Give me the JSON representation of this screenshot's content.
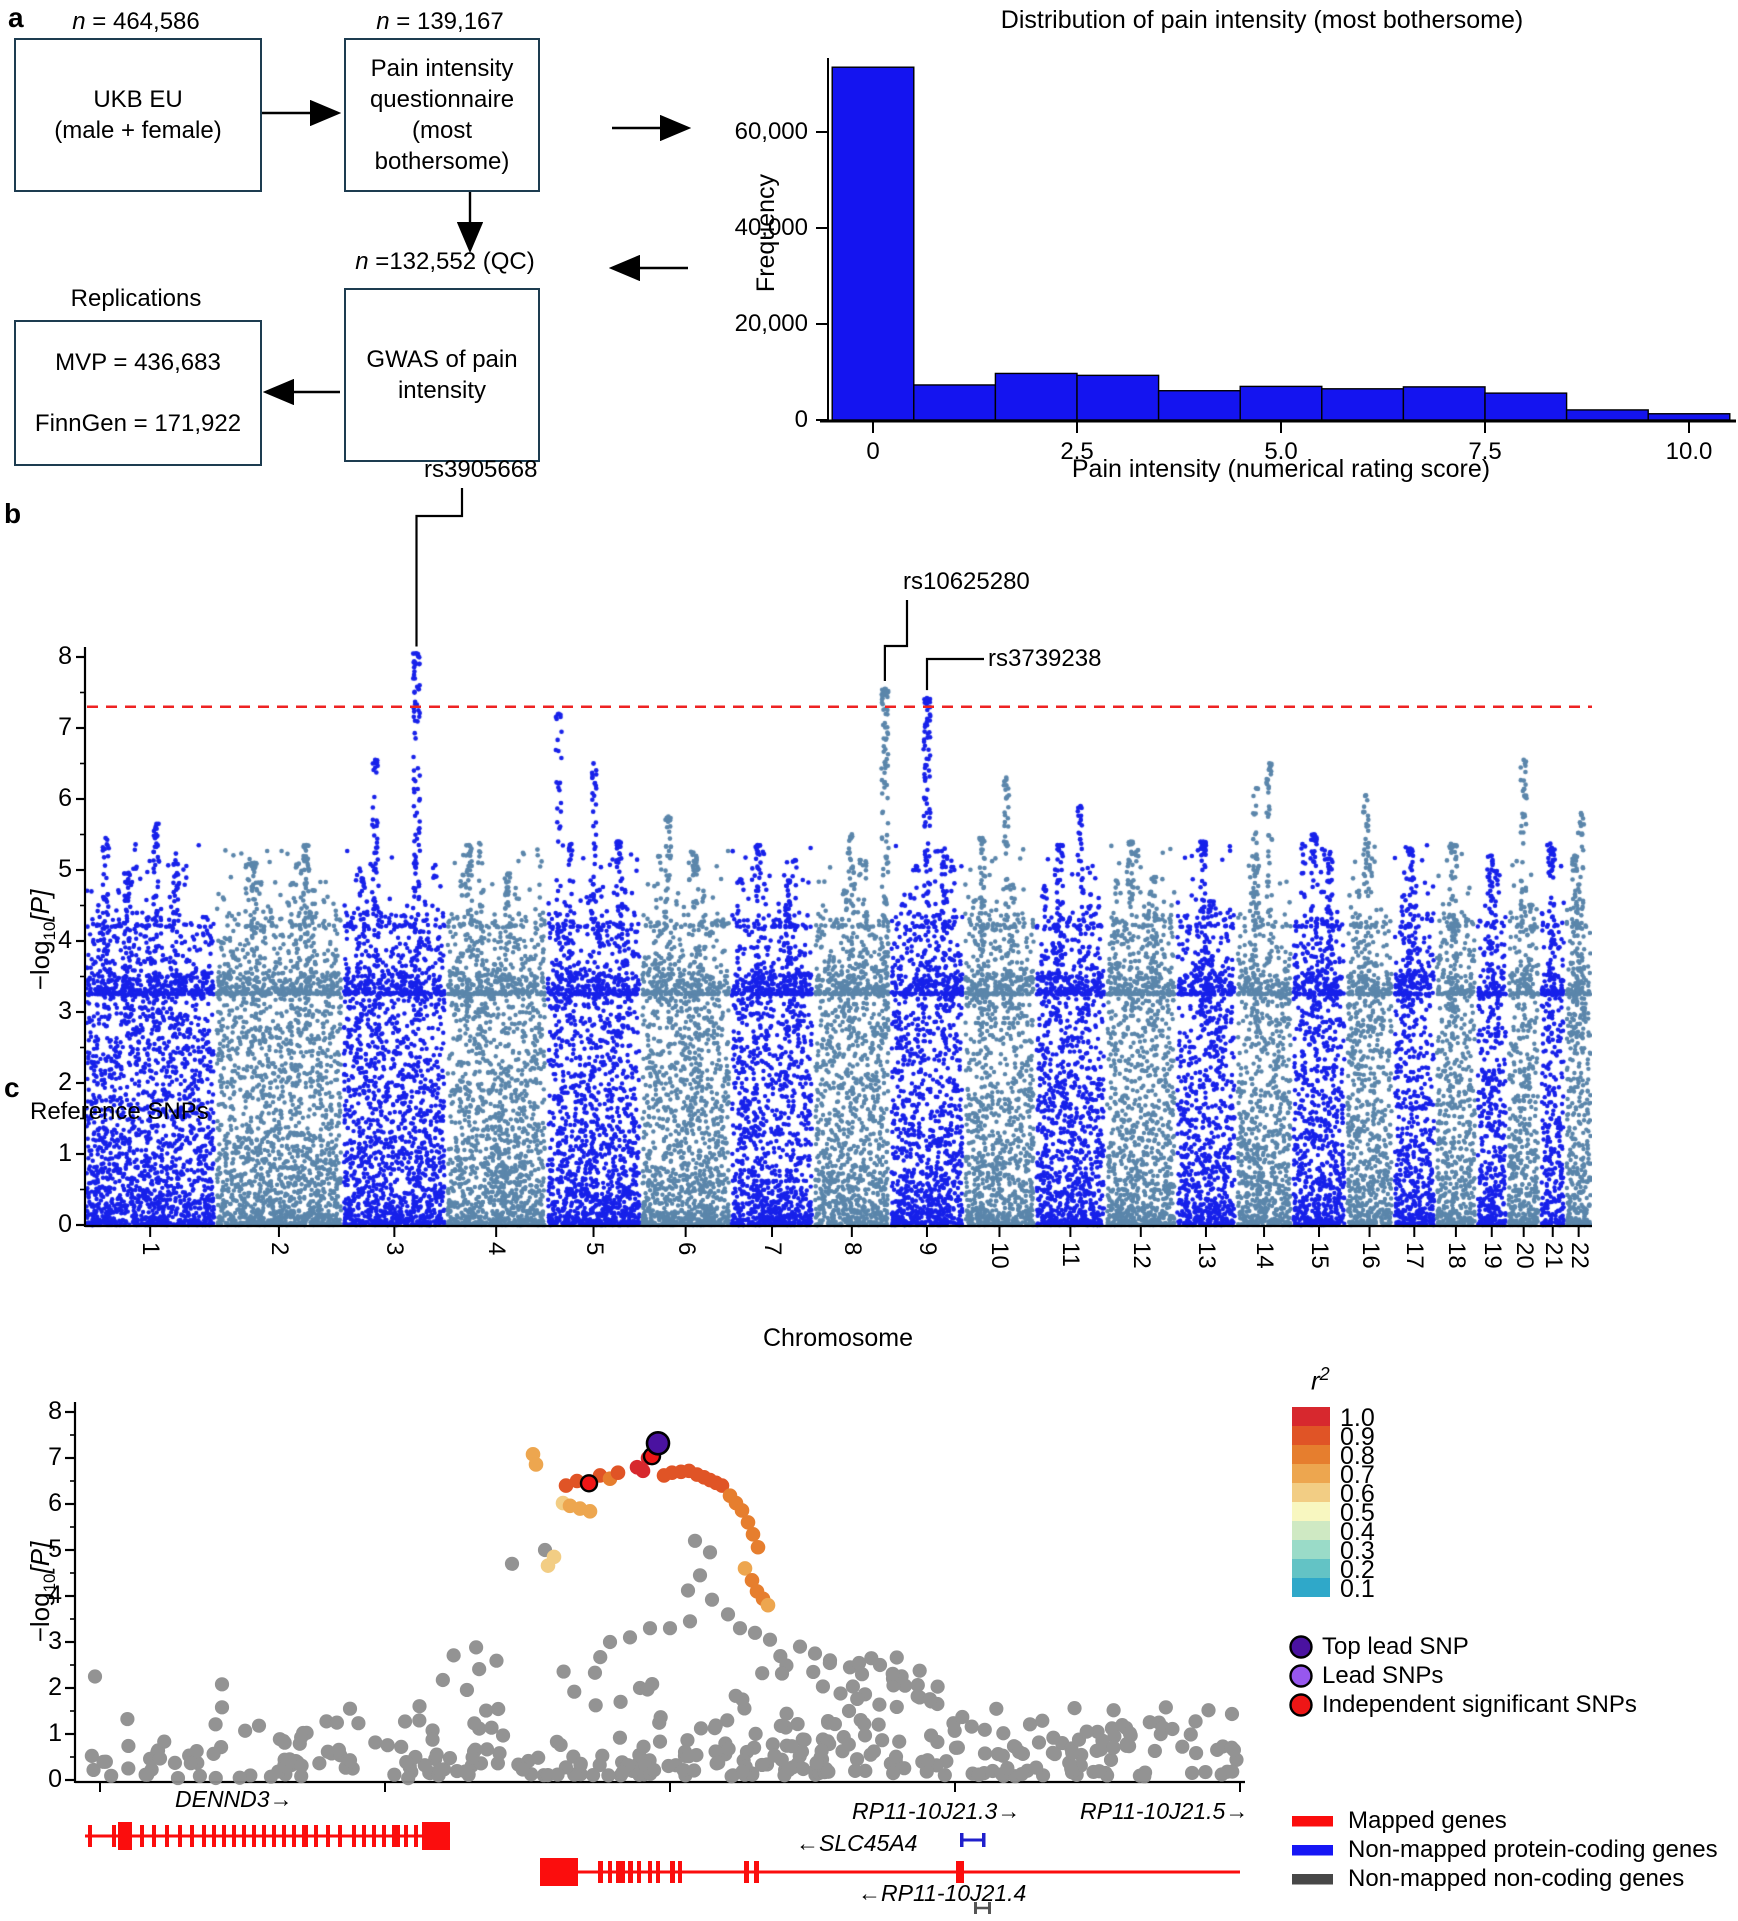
{
  "panel_labels": {
    "a": "a",
    "b": "b",
    "c": "c"
  },
  "flowchart": {
    "border_color": "#1d3c50",
    "n1": {
      "pre": "n",
      "rest": " = 464,586"
    },
    "n2": {
      "pre": "n",
      "rest": " = 139,167"
    },
    "n3": {
      "pre": "n",
      "rest": " =132,552 (QC)"
    },
    "box1": {
      "lines": [
        "UKB EU",
        "(male + female)"
      ]
    },
    "box2": {
      "lines": [
        "Pain intensity",
        "questionnaire",
        "(most bothersome)"
      ]
    },
    "box3": {
      "lines": [
        "GWAS of pain",
        "intensity"
      ]
    },
    "replications_title": "Replications",
    "box4": {
      "lines": [
        "MVP = 436,683",
        "FinnGen = 171,922"
      ]
    }
  },
  "chart_data": [
    {
      "type": "bar",
      "subtype": "histogram",
      "title": "Distribution of pain intensity (most bothersome)",
      "xlabel": "Pain intensity (numerical rating score)",
      "ylabel": "Frequency",
      "categories": [
        0,
        1,
        2,
        3,
        4,
        5,
        6,
        7,
        8,
        9,
        10
      ],
      "values": [
        73500,
        7300,
        9700,
        9300,
        6100,
        7000,
        6500,
        6900,
        5600,
        2100,
        1300
      ],
      "ylim": [
        0,
        76000
      ],
      "yticks": {
        "values": [
          0,
          20000,
          40000,
          60000
        ],
        "labels": [
          "0",
          "20,000",
          "40,000",
          "60,000"
        ]
      },
      "xticks": {
        "values": [
          0,
          2.5,
          5,
          7.5,
          10
        ],
        "labels": [
          "0",
          "2.5",
          "5.0",
          "7.5",
          "10.0"
        ]
      },
      "bar_color": "#1414f0",
      "bar_edge_color": "#000000"
    },
    {
      "type": "scatter",
      "subtype": "manhattan-plot",
      "xlabel": "Chromosome",
      "ylabel": "−log10[P]",
      "ylabel_parts": {
        "pre": "−log",
        "sub": "10",
        "post": "[P]"
      },
      "ylim": [
        0,
        8
      ],
      "yticks": [
        0,
        1,
        2,
        3,
        4,
        5,
        6,
        7,
        8
      ],
      "threshold": 7.3,
      "threshold_color": "#ee2222",
      "colors": {
        "odd_chromosome": "#1721ea",
        "even_chromosome": "#5b86ab"
      },
      "chromosomes": [
        {
          "label": "1",
          "size": 249
        },
        {
          "label": "2",
          "size": 243
        },
        {
          "label": "3",
          "size": 198
        },
        {
          "label": "4",
          "size": 191
        },
        {
          "label": "5",
          "size": 181
        },
        {
          "label": "6",
          "size": 171
        },
        {
          "label": "7",
          "size": 159
        },
        {
          "label": "8",
          "size": 146
        },
        {
          "label": "9",
          "size": 141
        },
        {
          "label": "10",
          "size": 136
        },
        {
          "label": "11",
          "size": 135
        },
        {
          "label": "12",
          "size": 134
        },
        {
          "label": "13",
          "size": 115
        },
        {
          "label": "14",
          "size": 107
        },
        {
          "label": "15",
          "size": 103
        },
        {
          "label": "16",
          "size": 90
        },
        {
          "label": "17",
          "size": 81
        },
        {
          "label": "18",
          "size": 78
        },
        {
          "label": "19",
          "size": 59
        },
        {
          "label": "20",
          "size": 63
        },
        {
          "label": "21",
          "size": 48
        },
        {
          "label": "22",
          "size": 51
        }
      ],
      "annotations": [
        {
          "snp": "rs3905668",
          "chr": 3,
          "pos": 0.72,
          "p": 8.05
        },
        {
          "snp": "rs10625280",
          "chr": 8,
          "pos": 0.95,
          "p": 7.55
        },
        {
          "snp": "rs3739238",
          "chr": 9,
          "pos": 0.5,
          "p": 7.42
        }
      ],
      "peaks": [
        {
          "chr": 1,
          "pos": 0.15,
          "p": 5.45
        },
        {
          "chr": 1,
          "pos": 0.55,
          "p": 5.65
        },
        {
          "chr": 1,
          "pos": 0.32,
          "p": 4.95
        },
        {
          "chr": 2,
          "pos": 0.3,
          "p": 5.1
        },
        {
          "chr": 2,
          "pos": 0.72,
          "p": 5.35
        },
        {
          "chr": 3,
          "pos": 0.31,
          "p": 6.55
        },
        {
          "chr": 4,
          "pos": 0.22,
          "p": 5.35
        },
        {
          "chr": 4,
          "pos": 0.62,
          "p": 4.95
        },
        {
          "chr": 5,
          "pos": 0.12,
          "p": 7.2
        },
        {
          "chr": 5,
          "pos": 0.5,
          "p": 6.5
        },
        {
          "chr": 5,
          "pos": 0.78,
          "p": 5.4
        },
        {
          "chr": 6,
          "pos": 0.3,
          "p": 5.75
        },
        {
          "chr": 6,
          "pos": 0.62,
          "p": 5.2
        },
        {
          "chr": 7,
          "pos": 0.32,
          "p": 5.35
        },
        {
          "chr": 7,
          "pos": 0.7,
          "p": 4.85
        },
        {
          "chr": 8,
          "pos": 0.5,
          "p": 5.5
        },
        {
          "chr": 9,
          "pos": 0.75,
          "p": 5.3
        },
        {
          "chr": 10,
          "pos": 0.25,
          "p": 5.45
        },
        {
          "chr": 10,
          "pos": 0.6,
          "p": 6.3
        },
        {
          "chr": 11,
          "pos": 0.35,
          "p": 5.35
        },
        {
          "chr": 11,
          "pos": 0.65,
          "p": 5.9
        },
        {
          "chr": 12,
          "pos": 0.35,
          "p": 5.4
        },
        {
          "chr": 12,
          "pos": 0.7,
          "p": 4.9
        },
        {
          "chr": 13,
          "pos": 0.45,
          "p": 5.4
        },
        {
          "chr": 14,
          "pos": 0.35,
          "p": 6.15
        },
        {
          "chr": 14,
          "pos": 0.6,
          "p": 6.5
        },
        {
          "chr": 15,
          "pos": 0.4,
          "p": 5.5
        },
        {
          "chr": 15,
          "pos": 0.72,
          "p": 5.25
        },
        {
          "chr": 16,
          "pos": 0.42,
          "p": 6.05
        },
        {
          "chr": 17,
          "pos": 0.4,
          "p": 5.3
        },
        {
          "chr": 18,
          "pos": 0.45,
          "p": 5.35
        },
        {
          "chr": 19,
          "pos": 0.45,
          "p": 5.2
        },
        {
          "chr": 20,
          "pos": 0.5,
          "p": 6.55
        },
        {
          "chr": 21,
          "pos": 0.45,
          "p": 5.3
        },
        {
          "chr": 22,
          "pos": 0.35,
          "p": 5.2
        },
        {
          "chr": 22,
          "pos": 0.6,
          "p": 5.8
        }
      ]
    },
    {
      "type": "scatter",
      "subtype": "regional-association-plot",
      "title": "Reference SNPs",
      "ylabel": "−log10[P]",
      "ylabel_parts": {
        "pre": "−log",
        "sub": "10",
        "post": "[P]"
      },
      "ylim": [
        0,
        8
      ],
      "yticks": [
        0,
        1,
        2,
        3,
        4,
        5,
        6,
        7,
        8
      ],
      "point_color_nonsignificant": "#8e8e8e",
      "r2_legend": {
        "title": "r",
        "title_sup": "2",
        "bins": [
          "1.0",
          "0.9",
          "0.8",
          "0.7",
          "0.6",
          "0.5",
          "0.4",
          "0.3",
          "0.2",
          "0.1"
        ],
        "colors": [
          "#d7282e",
          "#e05426",
          "#e67e2e",
          "#eda64f",
          "#f2cd84",
          "#f8f7c0",
          "#cfe9c3",
          "#9adbc8",
          "#63c3c5",
          "#2fa8c9"
        ]
      },
      "snp_legend": [
        {
          "label": "Top lead SNP",
          "color": "#4a12a0"
        },
        {
          "label": "Lead SNPs",
          "color": "#9757ee"
        },
        {
          "label": "Independent significant SNPs",
          "color": "#ee1616"
        }
      ],
      "gene_legend": [
        {
          "label": "Mapped genes",
          "color": "#fb0d0d"
        },
        {
          "label": "Non-mapped protein-coding genes",
          "color": "#1616f5"
        },
        {
          "label": "Non-mapped non-coding genes",
          "color": "#474747"
        }
      ],
      "top_lead_snp": {
        "x": 658,
        "p": 7.32
      },
      "independent_significant_snps": [
        {
          "x": 589,
          "p": 6.45
        },
        {
          "x": 652,
          "p": 7.04
        }
      ],
      "colored_points": [
        [
          533,
          7.08,
          "0.7"
        ],
        [
          536,
          6.86,
          "0.7"
        ],
        [
          548,
          4.66,
          "0.6"
        ],
        [
          563,
          6.02,
          "0.6"
        ],
        [
          570,
          5.96,
          "0.7"
        ],
        [
          580,
          5.9,
          "0.7"
        ],
        [
          590,
          5.84,
          "0.7"
        ],
        [
          566,
          6.4,
          "0.9"
        ],
        [
          577,
          6.5,
          "0.9"
        ],
        [
          600,
          6.62,
          "0.9"
        ],
        [
          610,
          6.55,
          "0.8"
        ],
        [
          618,
          6.68,
          "0.9"
        ],
        [
          637,
          6.8,
          "1.0"
        ],
        [
          643,
          6.72,
          "1.0"
        ],
        [
          648,
          7.0,
          "1.0"
        ],
        [
          664,
          6.62,
          "0.9"
        ],
        [
          672,
          6.68,
          "0.9"
        ],
        [
          681,
          6.7,
          "0.9"
        ],
        [
          689,
          6.72,
          "0.9"
        ],
        [
          697,
          6.64,
          "0.9"
        ],
        [
          704,
          6.58,
          "0.9"
        ],
        [
          710,
          6.52,
          "0.9"
        ],
        [
          716,
          6.46,
          "0.9"
        ],
        [
          722,
          6.4,
          "0.9"
        ],
        [
          730,
          6.18,
          "0.8"
        ],
        [
          736,
          6.02,
          "0.8"
        ],
        [
          742,
          5.86,
          "0.8"
        ],
        [
          748,
          5.6,
          "0.8"
        ],
        [
          753,
          5.34,
          "0.8"
        ],
        [
          758,
          5.06,
          "0.8"
        ],
        [
          745,
          4.6,
          "0.7"
        ],
        [
          752,
          4.34,
          "0.8"
        ],
        [
          757,
          4.1,
          "0.8"
        ],
        [
          763,
          3.94,
          "0.8"
        ],
        [
          768,
          3.8,
          "0.7"
        ],
        [
          554,
          4.85,
          "0.6"
        ]
      ],
      "notable_gray_points": [
        [
          95,
          2.25
        ],
        [
          222,
          2.08
        ],
        [
          222,
          1.58
        ],
        [
          350,
          1.55
        ],
        [
          512,
          4.7
        ],
        [
          545,
          5.0
        ],
        [
          695,
          5.2
        ],
        [
          710,
          4.95
        ],
        [
          700,
          4.45
        ],
        [
          688,
          4.12
        ],
        [
          712,
          3.92
        ],
        [
          728,
          3.6
        ],
        [
          690,
          3.45
        ],
        [
          670,
          3.3
        ],
        [
          650,
          3.3
        ],
        [
          630,
          3.1
        ],
        [
          610,
          3.0
        ],
        [
          640,
          2.0
        ],
        [
          740,
          3.3
        ],
        [
          755,
          3.2
        ],
        [
          770,
          3.05
        ],
        [
          800,
          2.9
        ],
        [
          815,
          2.75
        ],
        [
          830,
          2.6
        ],
        [
          850,
          2.45
        ],
        [
          862,
          2.3
        ],
        [
          880,
          2.5
        ],
        [
          893,
          2.2
        ],
        [
          905,
          2.05
        ]
      ],
      "genes": [
        {
          "label": "DENND3→",
          "type": "mapped"
        },
        {
          "label": "RP11-10J21.3→",
          "type": "protein-coding"
        },
        {
          "label": "RP11-10J21.5→",
          "type": "protein-coding"
        },
        {
          "label": "←SLC45A4",
          "type": "mapped"
        },
        {
          "label": "←RP11-10J21.4",
          "type": "non-coding"
        }
      ]
    }
  ]
}
